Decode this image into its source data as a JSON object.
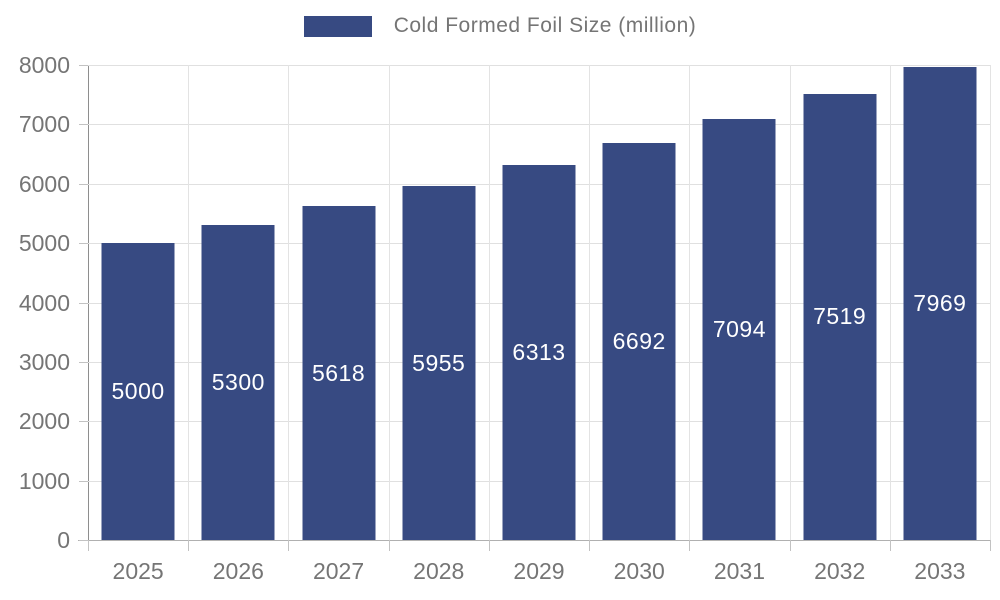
{
  "chart_data": {
    "type": "bar",
    "title": "",
    "legend": "Cold Formed Foil Size (million)",
    "legend_position": "top-center",
    "categories": [
      "2025",
      "2026",
      "2027",
      "2028",
      "2029",
      "2030",
      "2031",
      "2032",
      "2033"
    ],
    "series": [
      {
        "name": "Cold Formed Foil Size (million)",
        "values": [
          5000,
          5300,
          5618,
          5955,
          6313,
          6692,
          7094,
          7519,
          7969
        ]
      }
    ],
    "data_labels": [
      5000,
      5300,
      5618,
      5955,
      6313,
      6692,
      7094,
      7519,
      7969
    ],
    "data_label_position": "inside-center",
    "xlabel": "",
    "ylabel": "",
    "ylim": [
      0,
      8000
    ],
    "yticks": [
      0,
      1000,
      2000,
      3000,
      4000,
      5000,
      6000,
      7000,
      8000
    ],
    "grid": true
  },
  "colors": {
    "bar_fill": "#374a82",
    "data_label": "#ffffff",
    "grid_line": "#e0e0e0",
    "axis_text": "#757575",
    "legend_text": "#757575",
    "background": "#ffffff"
  }
}
